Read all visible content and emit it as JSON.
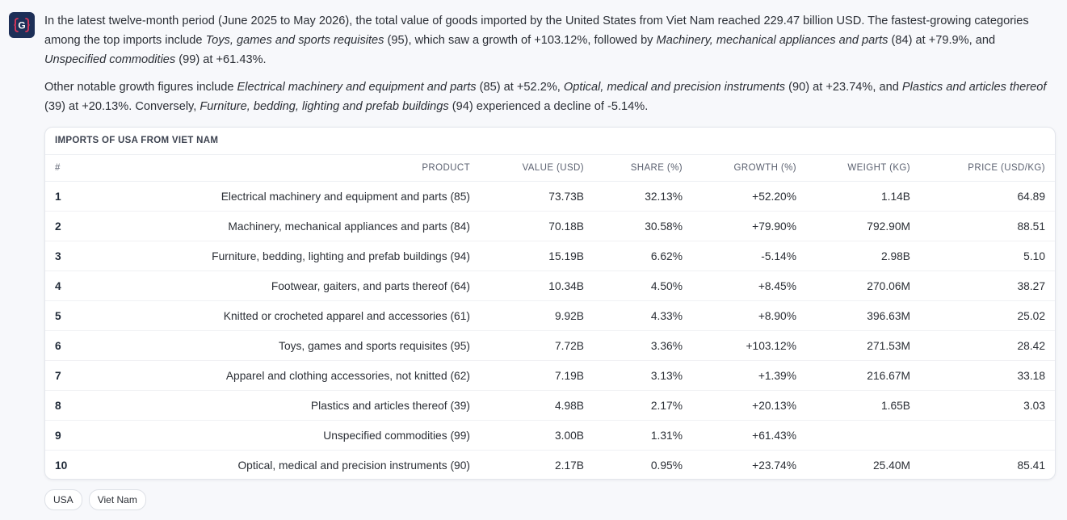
{
  "assistant": {
    "avatar_icon": "g-brand-logo-icon",
    "avatar_letter": "G",
    "avatar_color": "#1d2f57",
    "avatar_accent": "#e0365a"
  },
  "message": {
    "p1": [
      {
        "t": "In the latest twelve-month period (June 2025 to May 2026), the total value of goods imported by the United States from Viet Nam reached 229.47 billion USD. The fastest-growing categories among the top imports include ",
        "i": false
      },
      {
        "t": "Toys, games and sports requisites",
        "i": true
      },
      {
        "t": " (95), which saw a growth of +103.12%, followed by ",
        "i": false
      },
      {
        "t": "Machinery, mechanical appliances and parts",
        "i": true
      },
      {
        "t": " (84) at +79.9%, and ",
        "i": false
      },
      {
        "t": "Unspecified commodities",
        "i": true
      },
      {
        "t": " (99) at +61.43%.",
        "i": false
      }
    ],
    "p2": [
      {
        "t": "Other notable growth figures include ",
        "i": false
      },
      {
        "t": "Electrical machinery and equipment and parts",
        "i": true
      },
      {
        "t": " (85) at +52.2%, ",
        "i": false
      },
      {
        "t": "Optical, medical and precision instruments",
        "i": true
      },
      {
        "t": " (90) at +23.74%, and ",
        "i": false
      },
      {
        "t": "Plastics and articles thereof",
        "i": true
      },
      {
        "t": " (39) at +20.13%. Conversely, ",
        "i": false
      },
      {
        "t": "Furniture, bedding, lighting and prefab buildings",
        "i": true
      },
      {
        "t": " (94) experienced a decline of -5.14%.",
        "i": false
      }
    ]
  },
  "table": {
    "title": "IMPORTS OF USA FROM VIET NAM",
    "headers": {
      "num": "#",
      "product": "PRODUCT",
      "value": "VALUE (USD)",
      "share": "SHARE (%)",
      "growth": "GROWTH (%)",
      "weight": "WEIGHT (KG)",
      "price": "PRICE (USD/KG)"
    },
    "rows": [
      {
        "num": "1",
        "product": "Electrical machinery and equipment and parts (85)",
        "value": "73.73B",
        "share": "32.13%",
        "growth": "+52.20%",
        "weight": "1.14B",
        "price": "64.89"
      },
      {
        "num": "2",
        "product": "Machinery, mechanical appliances and parts (84)",
        "value": "70.18B",
        "share": "30.58%",
        "growth": "+79.90%",
        "weight": "792.90M",
        "price": "88.51"
      },
      {
        "num": "3",
        "product": "Furniture, bedding, lighting and prefab buildings (94)",
        "value": "15.19B",
        "share": "6.62%",
        "growth": "-5.14%",
        "weight": "2.98B",
        "price": "5.10"
      },
      {
        "num": "4",
        "product": "Footwear, gaiters, and parts thereof (64)",
        "value": "10.34B",
        "share": "4.50%",
        "growth": "+8.45%",
        "weight": "270.06M",
        "price": "38.27"
      },
      {
        "num": "5",
        "product": "Knitted or crocheted apparel and accessories (61)",
        "value": "9.92B",
        "share": "4.33%",
        "growth": "+8.90%",
        "weight": "396.63M",
        "price": "25.02"
      },
      {
        "num": "6",
        "product": "Toys, games and sports requisites (95)",
        "value": "7.72B",
        "share": "3.36%",
        "growth": "+103.12%",
        "weight": "271.53M",
        "price": "28.42"
      },
      {
        "num": "7",
        "product": "Apparel and clothing accessories, not knitted (62)",
        "value": "7.19B",
        "share": "3.13%",
        "growth": "+1.39%",
        "weight": "216.67M",
        "price": "33.18"
      },
      {
        "num": "8",
        "product": "Plastics and articles thereof (39)",
        "value": "4.98B",
        "share": "2.17%",
        "growth": "+20.13%",
        "weight": "1.65B",
        "price": "3.03"
      },
      {
        "num": "9",
        "product": "Unspecified commodities (99)",
        "value": "3.00B",
        "share": "1.31%",
        "growth": "+61.43%",
        "weight": "",
        "price": ""
      },
      {
        "num": "10",
        "product": "Optical, medical and precision instruments (90)",
        "value": "2.17B",
        "share": "0.95%",
        "growth": "+23.74%",
        "weight": "25.40M",
        "price": "85.41"
      }
    ]
  },
  "tags": [
    "USA",
    "Viet Nam"
  ]
}
